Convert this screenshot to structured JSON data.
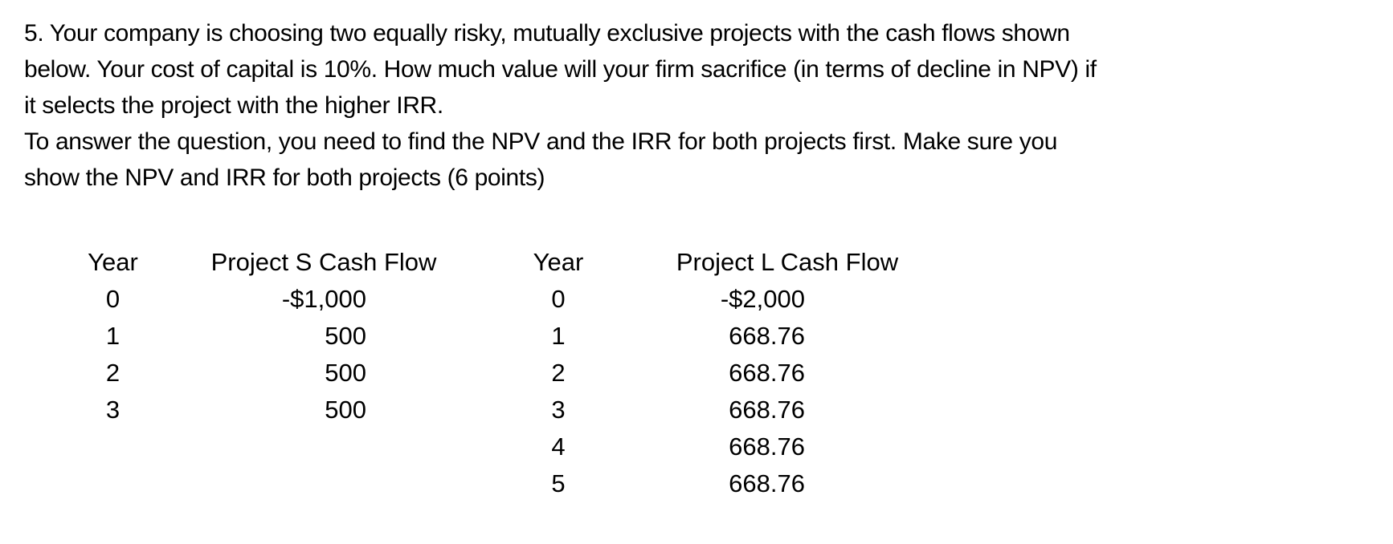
{
  "page": {
    "background_color": "#ffffff",
    "text_color": "#000000"
  },
  "question": {
    "number": "5",
    "points": "6 points",
    "lines": [
      "5. Your company is choosing two equally risky, mutually exclusive projects with the cash flows shown",
      "below. Your cost of capital is 10%. How much value will your firm sacrifice (in terms of decline in NPV) if",
      "it selects the project with the higher IRR.",
      "To answer the question, you need to find the NPV and the IRR for both projects first. Make sure you",
      "show the NPV and IRR for both projects (6 points)"
    ]
  },
  "cashflow_tables": {
    "project_s": {
      "year_header": "Year",
      "cashflow_header": "Project S Cash Flow",
      "rows": [
        {
          "year": "0",
          "cash_flow": "-$1,000"
        },
        {
          "year": "1",
          "cash_flow": "500"
        },
        {
          "year": "2",
          "cash_flow": "500"
        },
        {
          "year": "3",
          "cash_flow": "500"
        }
      ]
    },
    "project_l": {
      "year_header": "Year",
      "cashflow_header": "Project L Cash Flow",
      "rows": [
        {
          "year": "0",
          "cash_flow": "-$2,000"
        },
        {
          "year": "1",
          "cash_flow": "668.76"
        },
        {
          "year": "2",
          "cash_flow": "668.76"
        },
        {
          "year": "3",
          "cash_flow": "668.76"
        },
        {
          "year": "4",
          "cash_flow": "668.76"
        },
        {
          "year": "5",
          "cash_flow": "668.76"
        }
      ]
    }
  }
}
